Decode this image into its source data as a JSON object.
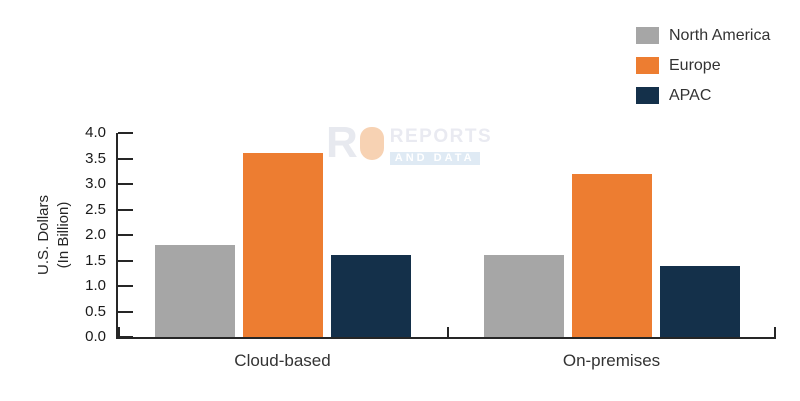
{
  "watermark": {
    "logo_letter": "R",
    "line1": "REPORTS",
    "line2": "AND DATA"
  },
  "y_axis": {
    "title_line1": "U.S. Dollars",
    "title_line2": "(In Billion)"
  },
  "chart_data": {
    "type": "bar",
    "title": "",
    "xlabel": "",
    "ylabel": "U.S. Dollars (In Billion)",
    "categories": [
      "Cloud-based",
      "On-premises"
    ],
    "series": [
      {
        "name": "North America",
        "color": "#a6a6a6",
        "values": [
          1.8,
          1.6
        ]
      },
      {
        "name": "Europe",
        "color": "#ed7d31",
        "values": [
          3.6,
          3.2
        ]
      },
      {
        "name": "APAC",
        "color": "#14304a",
        "values": [
          1.6,
          1.4
        ]
      }
    ],
    "ylim": [
      0,
      4
    ],
    "ytick_labels": [
      "0.0",
      "0.5",
      "1.0",
      "1.5",
      "2.0",
      "2.5",
      "3.0",
      "3.5",
      "4.0"
    ],
    "legend_position": "top-right",
    "grid": false,
    "axis_color": "#262626",
    "text_color": "#333333"
  }
}
